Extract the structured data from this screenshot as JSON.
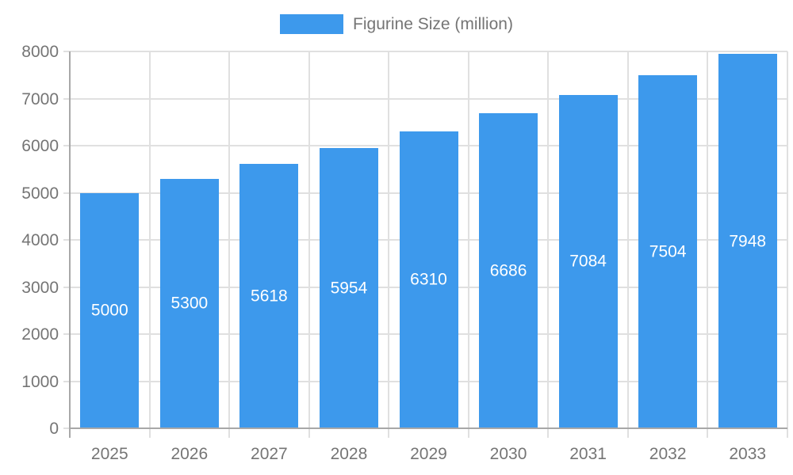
{
  "chart_data": {
    "type": "bar",
    "title": "",
    "legend": {
      "label": "Figurine Size (million)"
    },
    "legend_position": "top-center",
    "categories": [
      "2025",
      "2026",
      "2027",
      "2028",
      "2029",
      "2030",
      "2031",
      "2032",
      "2033"
    ],
    "series": [
      {
        "name": "Figurine Size (million)",
        "values": [
          5000,
          5300,
          5618,
          5954,
          6310,
          6686,
          7084,
          7504,
          7948
        ]
      }
    ],
    "xlabel": "",
    "ylabel": "",
    "ylim": [
      0,
      8000
    ],
    "y_ticks": [
      0,
      1000,
      2000,
      3000,
      4000,
      5000,
      6000,
      7000,
      8000
    ],
    "grid": true,
    "bar_labels": "inside-middle"
  },
  "colors": {
    "bar": "#3D99EC",
    "grid": "#E0E0E0",
    "axis": "#A8A8A8",
    "text": "#757575",
    "bar_label": "#FFFFFF",
    "background": "#FFFFFF"
  }
}
